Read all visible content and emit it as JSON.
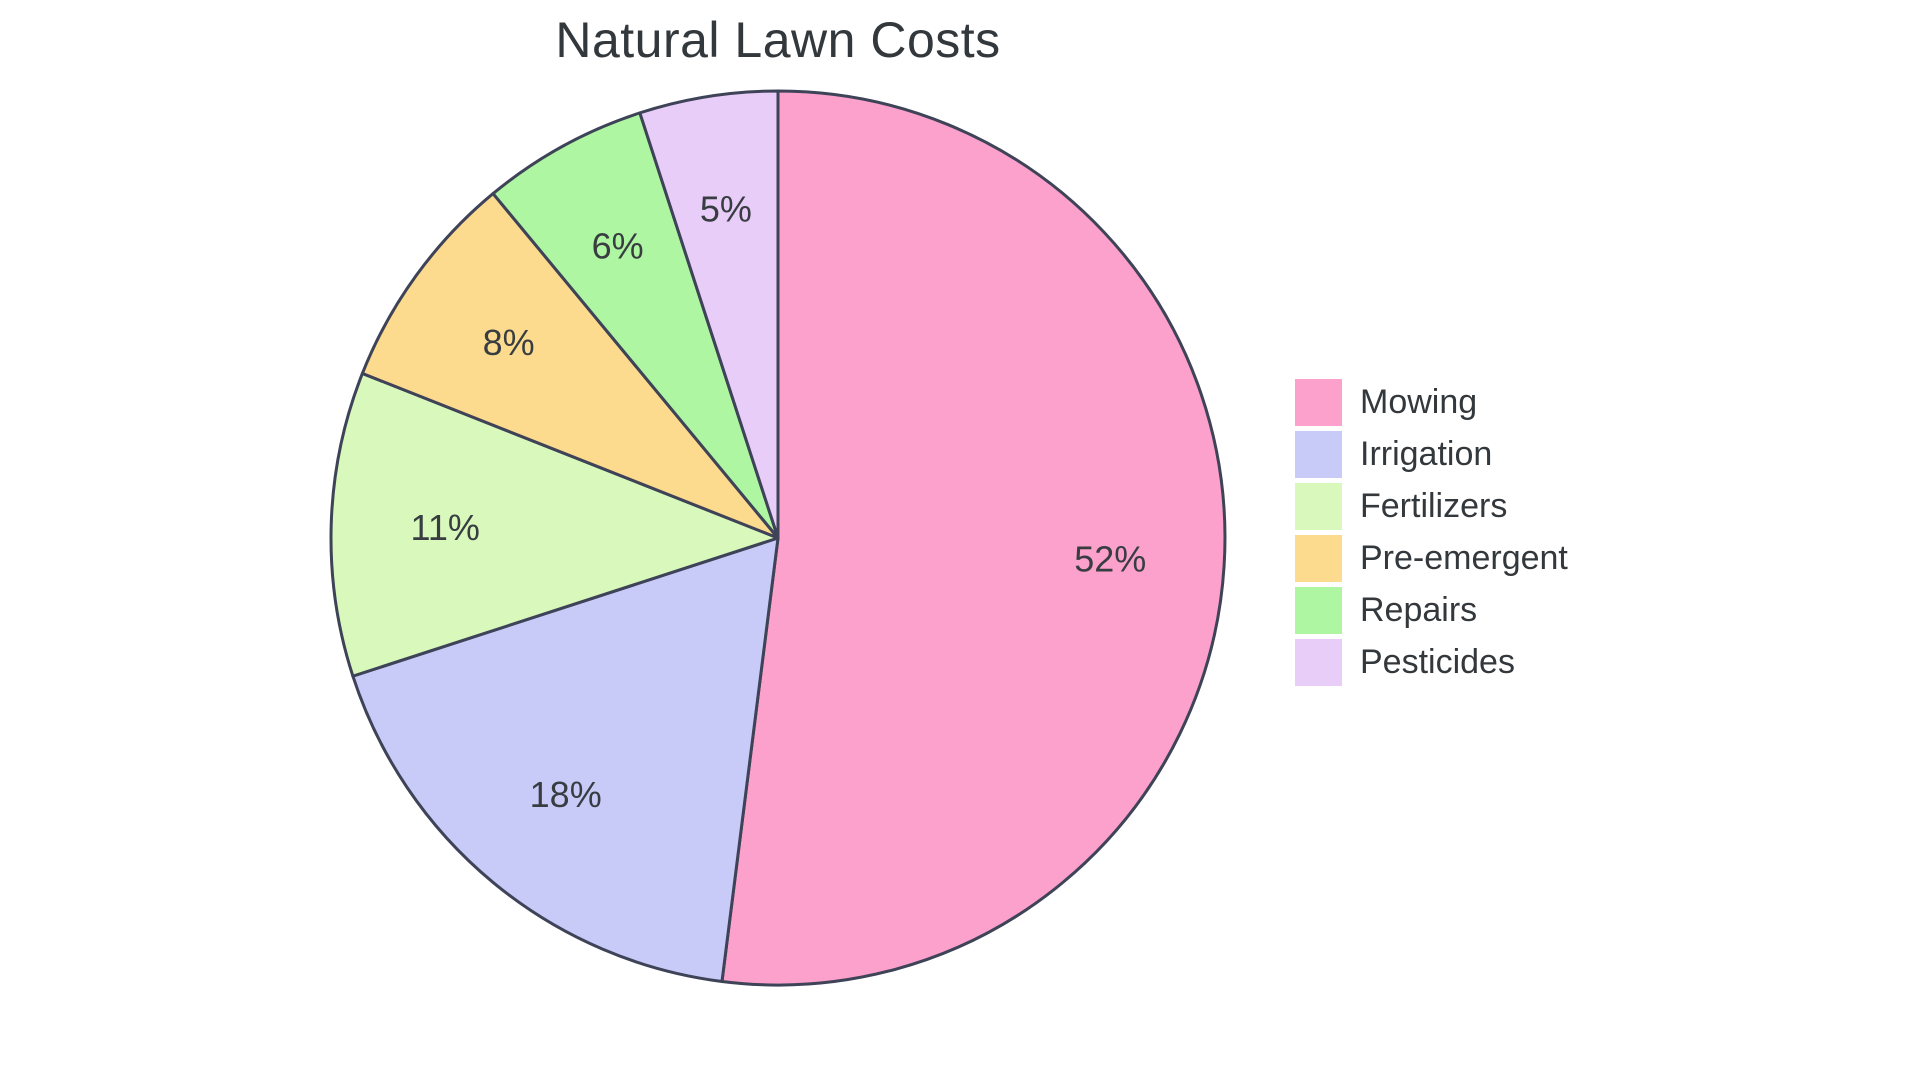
{
  "page": {
    "background_color": "#ffffff"
  },
  "chart_data": {
    "type": "pie",
    "title": "Natural Lawn Costs",
    "start_angle": "top",
    "direction": "clockwise",
    "legend_position": "right-center",
    "outline_color": "#3e4358",
    "title_color": "#33383d",
    "label_color": "#383d42",
    "slices": [
      {
        "label": "Mowing",
        "value": 52,
        "display": "52%",
        "color": "#fba1cb"
      },
      {
        "label": "Irrigation",
        "value": 18,
        "display": "18%",
        "color": "#c8cbf8"
      },
      {
        "label": "Fertilizers",
        "value": 11,
        "display": "11%",
        "color": "#d8f8bc"
      },
      {
        "label": "Pre-emergent",
        "value": 8,
        "display": "8%",
        "color": "#fcda8e"
      },
      {
        "label": "Repairs",
        "value": 6,
        "display": "6%",
        "color": "#aff6a3"
      },
      {
        "label": "Pesticides",
        "value": 5,
        "display": "5%",
        "color": "#e9cdf9"
      }
    ]
  }
}
